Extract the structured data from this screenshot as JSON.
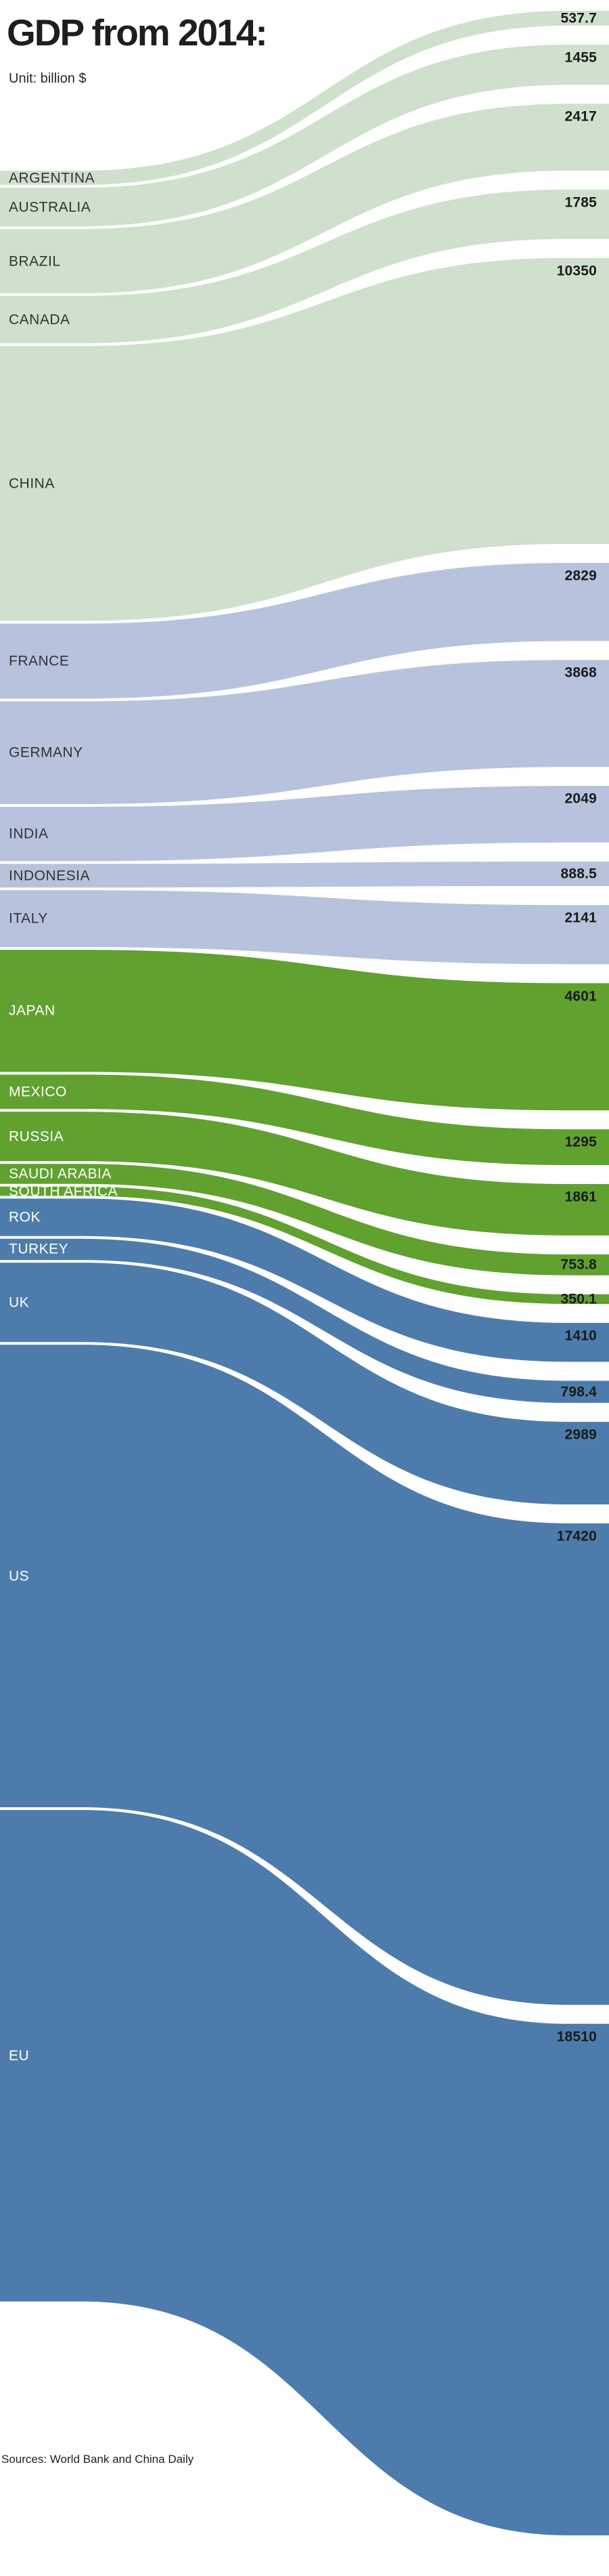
{
  "header": {
    "title": "GDP from 2014:",
    "unit_label": "Unit: billion $"
  },
  "footer": {
    "source": "Sources: World Bank and China Daily"
  },
  "chart_data": {
    "type": "sankey",
    "title": "GDP from 2014:",
    "unit": "billion $",
    "source": "Sources: World Bank and China Daily",
    "orientation": "left-bands-to-right-bands",
    "legend_position": "none",
    "groups": {
      "green-light": {
        "color": "#cfe0cd",
        "label_color": "#333333"
      },
      "lavender": {
        "color": "#b7c3dd",
        "label_color": "#333333"
      },
      "green": {
        "color": "#61a130",
        "label_color": "#ffffff"
      },
      "blue": {
        "color": "#4d7cac",
        "label_color": "#ffffff"
      }
    },
    "items": [
      {
        "name": "ARGENTINA",
        "value": 537.7,
        "value_label": "537.7",
        "group": "green-light"
      },
      {
        "name": "AUSTRALIA",
        "value": 1455,
        "value_label": "1455",
        "group": "green-light"
      },
      {
        "name": "BRAZIL",
        "value": 2417,
        "value_label": "2417",
        "group": "green-light"
      },
      {
        "name": "CANADA",
        "value": 1785,
        "value_label": "1785",
        "group": "green-light"
      },
      {
        "name": "CHINA",
        "value": 10350,
        "value_label": "10350",
        "group": "green-light"
      },
      {
        "name": "FRANCE",
        "value": 2829,
        "value_label": "2829",
        "group": "lavender"
      },
      {
        "name": "GERMANY",
        "value": 3868,
        "value_label": "3868",
        "group": "lavender"
      },
      {
        "name": "INDIA",
        "value": 2049,
        "value_label": "2049",
        "group": "lavender"
      },
      {
        "name": "INDONESIA",
        "value": 888.5,
        "value_label": "888.5",
        "group": "lavender"
      },
      {
        "name": "ITALY",
        "value": 2141,
        "value_label": "2141",
        "group": "lavender"
      },
      {
        "name": "JAPAN",
        "value": 4601,
        "value_label": "4601",
        "group": "green"
      },
      {
        "name": "MEXICO",
        "value": 1295,
        "value_label": "1295",
        "group": "green"
      },
      {
        "name": "RUSSIA",
        "value": 1861,
        "value_label": "1861",
        "group": "green"
      },
      {
        "name": "SAUDI ARABIA",
        "value": 753.8,
        "value_label": "753.8",
        "group": "green"
      },
      {
        "name": "SOUTH AFRICA",
        "value": 350.1,
        "value_label": "350.1",
        "group": "green"
      },
      {
        "name": "ROK",
        "value": 1410,
        "value_label": "1410",
        "group": "blue"
      },
      {
        "name": "TURKEY",
        "value": 798.4,
        "value_label": "798.4",
        "group": "blue"
      },
      {
        "name": "UK",
        "value": 2989,
        "value_label": "2989",
        "group": "blue"
      },
      {
        "name": "US",
        "value": 17420,
        "value_label": "17420",
        "group": "blue"
      },
      {
        "name": "EU",
        "value": 18510,
        "value_label": "18510",
        "group": "blue"
      }
    ]
  }
}
